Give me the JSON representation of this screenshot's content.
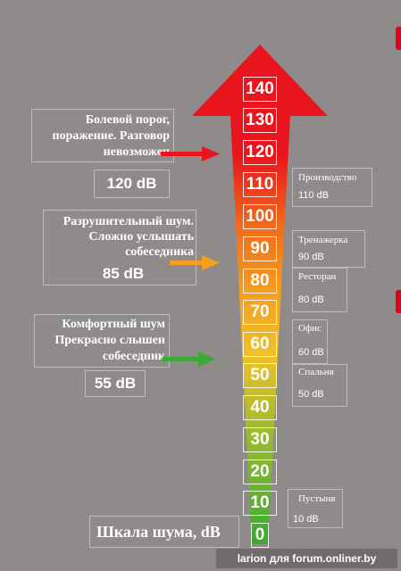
{
  "colors": {
    "background": "#8e8b8a",
    "red": "#e8141e",
    "orange": "#f5a020",
    "yellow": "#eec12a",
    "green": "#3aa935"
  },
  "scale": {
    "ticks": [
      "140",
      "130",
      "120",
      "110",
      "100",
      "90",
      "80",
      "70",
      "60",
      "50",
      "40",
      "30",
      "20",
      "10",
      "0"
    ],
    "caption": "Шкала шума, dB"
  },
  "left_notes": [
    {
      "lines": [
        "Болевой порог,",
        "поражение. Разговор",
        "невозможен"
      ],
      "value": "120 dB",
      "arrow_color": "red-arrow-icon"
    },
    {
      "lines": [
        "Разрушительный шум.",
        "Сложно услышать",
        "собеседника"
      ],
      "value": "85 dB",
      "arrow_color": "orange-arrow-icon"
    },
    {
      "lines": [
        "Комфортный шум",
        "Прекрасно слышен",
        "собеседник"
      ],
      "value": "55 dB",
      "arrow_color": "green-arrow-icon"
    }
  ],
  "right_notes": [
    {
      "name": "Производство",
      "value": "110 dB"
    },
    {
      "name": "Тренажерка",
      "value": "90 dB"
    },
    {
      "name": "Ресторан",
      "value": "80 dB"
    },
    {
      "name": "Офис",
      "value": "60 dB"
    },
    {
      "name": "Спальня",
      "value": "50 dB"
    },
    {
      "name": "Пустыня",
      "value": "10 dB"
    }
  ],
  "watermark": "larion для forum.onliner.by"
}
